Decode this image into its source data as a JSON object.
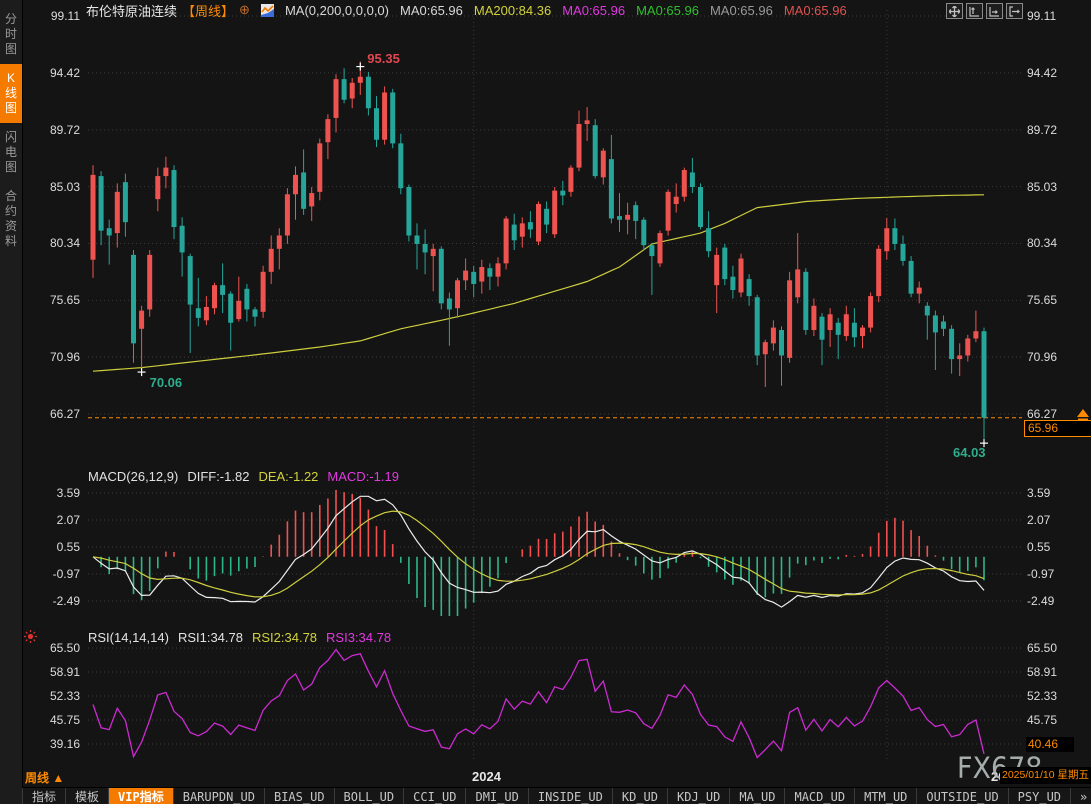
{
  "header": {
    "title": "布伦特原油连续",
    "period_tag": "【周线】",
    "plus_icon": "⊕",
    "ma_param": "MA(0,200,0,0,0,0)",
    "ma_items": [
      {
        "label": "MA0:65.96",
        "color": "#d8d8d8"
      },
      {
        "label": "MA200:84.36",
        "color": "#d2d23e"
      },
      {
        "label": "MA0:65.96",
        "color": "#e03ae0"
      },
      {
        "label": "MA0:65.96",
        "color": "#2fbf2f"
      },
      {
        "label": "MA0:65.96",
        "color": "#9a9a9a"
      },
      {
        "label": "MA0:65.96",
        "color": "#e05252"
      }
    ]
  },
  "sidebar": {
    "tabs": [
      {
        "label": "分时图",
        "active": false
      },
      {
        "label": "K线图",
        "active": true
      },
      {
        "label": "闪电图",
        "active": false
      },
      {
        "label": "合约资料",
        "active": false
      }
    ]
  },
  "macd_panel": {
    "title": "MACD(26,12,9)",
    "diff_label": "DIFF:-1.82",
    "dea_label": "DEA:-1.22",
    "macd_label": "MACD:-1.19",
    "axis_labels": [
      "3.59",
      "2.07",
      "0.55",
      "-0.97",
      "-2.49"
    ]
  },
  "rsi_panel": {
    "title": "RSI(14,14,14)",
    "rsi1_label": "RSI1:34.78",
    "rsi2_label": "RSI2:34.78",
    "rsi3_label": "RSI3:34.78",
    "axis_labels": [
      "65.50",
      "58.91",
      "52.33",
      "45.75",
      "39.16"
    ],
    "badge": "40.46"
  },
  "status_bar": {
    "period": "周线",
    "period_arrow": "▲",
    "year_left": "2024",
    "year_right": "2025",
    "date_tooltip": "2025/01/10 星期五",
    "watermark": "FX678"
  },
  "bottom_tabs": [
    {
      "label": "指标",
      "active": false
    },
    {
      "label": "模板",
      "active": false
    },
    {
      "label": "VIP指标",
      "active": true
    },
    {
      "label": "BARUPDN_UD",
      "active": false
    },
    {
      "label": "BIAS_UD",
      "active": false
    },
    {
      "label": "BOLL_UD",
      "active": false
    },
    {
      "label": "CCI_UD",
      "active": false
    },
    {
      "label": "DMI_UD",
      "active": false
    },
    {
      "label": "INSIDE_UD",
      "active": false
    },
    {
      "label": "KD_UD",
      "active": false
    },
    {
      "label": "KDJ_UD",
      "active": false
    },
    {
      "label": "MA_UD",
      "active": false
    },
    {
      "label": "MACD_UD",
      "active": false
    },
    {
      "label": "MTM_UD",
      "active": false
    },
    {
      "label": "OUTSIDE_UD",
      "active": false
    },
    {
      "label": "PSY_UD",
      "active": false
    },
    {
      "label": "»",
      "active": false
    }
  ],
  "chart_data": {
    "type": "candlestick",
    "instrument": "布伦特原油连续",
    "period": "周线",
    "price_axis_labels": [
      "99.11",
      "94.42",
      "89.72",
      "85.03",
      "80.34",
      "75.65",
      "70.96",
      "66.27"
    ],
    "price_axis_range": [
      99.11,
      66.27
    ],
    "macd_axis_range": [
      3.59,
      -2.49
    ],
    "rsi_axis_range": [
      65.5,
      39.16
    ],
    "colors": {
      "up": "#ef5350",
      "down": "#26a69a",
      "ma200": "#cdcd3e",
      "diff_line": "#ececec",
      "dea_line": "#cdcd3e",
      "rsi_line": "#cc2ad2",
      "accent": "#ff8a00",
      "grid": "#3a3a3a"
    },
    "candles": [
      [
        79.0,
        86.8,
        77.5,
        86.0
      ],
      [
        85.9,
        86.3,
        80.2,
        81.4
      ],
      [
        81.6,
        82.3,
        78.6,
        81.0
      ],
      [
        81.2,
        85.3,
        80.0,
        84.6
      ],
      [
        85.4,
        86.1,
        80.9,
        82.1
      ],
      [
        79.4,
        79.8,
        70.5,
        72.1
      ],
      [
        73.3,
        75.2,
        70.06,
        74.8
      ],
      [
        74.9,
        79.8,
        74.3,
        79.4
      ],
      [
        84.0,
        86.6,
        83.0,
        85.9
      ],
      [
        85.9,
        87.5,
        84.9,
        86.6
      ],
      [
        86.4,
        86.8,
        80.7,
        81.7
      ],
      [
        81.8,
        82.5,
        77.6,
        79.6
      ],
      [
        79.3,
        79.5,
        71.3,
        75.3
      ],
      [
        75.0,
        77.5,
        73.5,
        74.2
      ],
      [
        74.0,
        76.0,
        73.6,
        75.1
      ],
      [
        75.0,
        77.1,
        74.5,
        76.9
      ],
      [
        76.9,
        78.7,
        74.6,
        76.1
      ],
      [
        76.2,
        76.4,
        71.5,
        73.8
      ],
      [
        74.1,
        77.6,
        73.9,
        75.6
      ],
      [
        76.6,
        77.0,
        73.9,
        74.9
      ],
      [
        74.9,
        75.1,
        73.5,
        74.3
      ],
      [
        74.7,
        78.5,
        74.2,
        78.0
      ],
      [
        78.0,
        81.0,
        77.0,
        79.9
      ],
      [
        79.9,
        81.6,
        78.2,
        81.0
      ],
      [
        81.0,
        84.9,
        80.3,
        84.4
      ],
      [
        84.4,
        86.7,
        82.3,
        86.0
      ],
      [
        86.2,
        88.1,
        82.7,
        83.2
      ],
      [
        83.4,
        85.0,
        82.2,
        84.5
      ],
      [
        84.6,
        89.0,
        83.9,
        88.6
      ],
      [
        88.7,
        91.0,
        87.3,
        90.6
      ],
      [
        90.7,
        94.3,
        89.5,
        93.9
      ],
      [
        93.9,
        94.8,
        91.9,
        92.2
      ],
      [
        92.3,
        94.0,
        91.5,
        93.6
      ],
      [
        93.6,
        95.35,
        92.6,
        94.1
      ],
      [
        94.1,
        94.5,
        90.9,
        91.5
      ],
      [
        91.5,
        92.5,
        88.3,
        88.9
      ],
      [
        88.9,
        93.3,
        88.5,
        92.8
      ],
      [
        92.8,
        93.1,
        88.2,
        88.6
      ],
      [
        88.6,
        89.4,
        84.4,
        84.9
      ],
      [
        85.0,
        85.2,
        80.5,
        81.0
      ],
      [
        81.0,
        82.0,
        78.2,
        80.3
      ],
      [
        80.3,
        81.5,
        77.8,
        79.6
      ],
      [
        79.3,
        80.3,
        76.4,
        79.9
      ],
      [
        79.9,
        80.1,
        74.9,
        75.4
      ],
      [
        75.8,
        76.3,
        71.9,
        74.9
      ],
      [
        75.0,
        77.5,
        74.2,
        77.3
      ],
      [
        77.3,
        79.1,
        76.5,
        78.1
      ],
      [
        78.0,
        78.5,
        75.9,
        77.0
      ],
      [
        77.2,
        79.0,
        76.2,
        78.4
      ],
      [
        78.3,
        78.7,
        76.5,
        77.6
      ],
      [
        77.6,
        79.2,
        76.8,
        78.7
      ],
      [
        78.7,
        82.6,
        78.2,
        82.4
      ],
      [
        81.9,
        82.8,
        79.8,
        80.6
      ],
      [
        80.9,
        82.5,
        80.0,
        82.0
      ],
      [
        82.1,
        83.0,
        80.8,
        81.5
      ],
      [
        80.5,
        83.8,
        80.2,
        83.6
      ],
      [
        83.2,
        83.8,
        81.2,
        81.9
      ],
      [
        81.1,
        85.0,
        80.8,
        84.7
      ],
      [
        84.7,
        85.5,
        83.5,
        84.3
      ],
      [
        84.6,
        86.8,
        84.2,
        86.6
      ],
      [
        86.6,
        91.3,
        86.3,
        90.2
      ],
      [
        90.2,
        91.6,
        88.8,
        90.5
      ],
      [
        90.1,
        90.6,
        85.7,
        85.9
      ],
      [
        85.8,
        88.2,
        85.2,
        88.0
      ],
      [
        87.3,
        89.3,
        82.0,
        82.4
      ],
      [
        82.6,
        84.5,
        81.3,
        82.3
      ],
      [
        82.3,
        83.7,
        81.1,
        82.7
      ],
      [
        83.5,
        83.8,
        80.7,
        82.2
      ],
      [
        82.3,
        82.5,
        79.8,
        80.2
      ],
      [
        80.2,
        80.4,
        76.1,
        79.3
      ],
      [
        78.7,
        81.4,
        78.4,
        81.2
      ],
      [
        81.4,
        84.8,
        81.0,
        84.6
      ],
      [
        83.6,
        85.3,
        82.9,
        84.2
      ],
      [
        84.2,
        86.6,
        83.8,
        86.4
      ],
      [
        86.2,
        87.4,
        84.5,
        85.0
      ],
      [
        85.0,
        85.3,
        81.5,
        81.7
      ],
      [
        81.6,
        83.0,
        79.2,
        79.7
      ],
      [
        76.9,
        80.0,
        74.6,
        79.4
      ],
      [
        80.0,
        80.3,
        76.9,
        77.4
      ],
      [
        77.6,
        78.5,
        75.8,
        76.5
      ],
      [
        76.3,
        79.5,
        75.9,
        79.1
      ],
      [
        77.4,
        77.8,
        75.2,
        76.0
      ],
      [
        75.9,
        76.1,
        70.3,
        71.1
      ],
      [
        71.2,
        72.4,
        68.5,
        72.2
      ],
      [
        72.1,
        74.0,
        71.5,
        73.4
      ],
      [
        73.2,
        73.5,
        68.6,
        71.1
      ],
      [
        70.9,
        78.0,
        70.5,
        77.3
      ],
      [
        75.9,
        81.2,
        75.4,
        78.2
      ],
      [
        78.0,
        78.3,
        72.8,
        73.2
      ],
      [
        73.2,
        75.8,
        72.7,
        75.2
      ],
      [
        74.3,
        74.6,
        70.3,
        72.4
      ],
      [
        73.2,
        75.0,
        71.8,
        74.5
      ],
      [
        73.8,
        74.2,
        70.8,
        72.8
      ],
      [
        72.7,
        75.2,
        72.3,
        74.5
      ],
      [
        73.8,
        75.0,
        71.8,
        72.6
      ],
      [
        72.7,
        73.6,
        71.7,
        73.4
      ],
      [
        73.4,
        76.3,
        73.0,
        76.0
      ],
      [
        76.0,
        80.2,
        75.5,
        79.9
      ],
      [
        79.7,
        82.45,
        79.0,
        81.6
      ],
      [
        81.6,
        82.4,
        79.8,
        80.3
      ],
      [
        80.3,
        81.0,
        78.5,
        78.9
      ],
      [
        78.9,
        79.3,
        75.9,
        76.2
      ],
      [
        76.2,
        77.2,
        75.4,
        76.7
      ],
      [
        75.2,
        75.5,
        72.4,
        74.4
      ],
      [
        74.4,
        74.8,
        69.9,
        73.0
      ],
      [
        73.9,
        74.4,
        72.7,
        73.3
      ],
      [
        73.3,
        73.6,
        69.6,
        70.8
      ],
      [
        70.8,
        72.1,
        69.4,
        71.1
      ],
      [
        71.1,
        72.8,
        70.6,
        72.5
      ],
      [
        72.5,
        74.8,
        72.2,
        73.1
      ],
      [
        73.1,
        73.4,
        64.03,
        65.96
      ]
    ],
    "ma200_points": [
      [
        0,
        69.8
      ],
      [
        6,
        70.1
      ],
      [
        14,
        70.7
      ],
      [
        22,
        71.3
      ],
      [
        28,
        71.8
      ],
      [
        33,
        72.3
      ],
      [
        38,
        73.3
      ],
      [
        43,
        74.0
      ],
      [
        47,
        74.6
      ],
      [
        52,
        75.4
      ],
      [
        56,
        76.2
      ],
      [
        61,
        77.2
      ],
      [
        65,
        78.4
      ],
      [
        69,
        80.3
      ],
      [
        75,
        81.2
      ],
      [
        78,
        82.0
      ],
      [
        82,
        83.3
      ],
      [
        88,
        83.8
      ],
      [
        94,
        84.05
      ],
      [
        100,
        84.2
      ],
      [
        105,
        84.3
      ],
      [
        110,
        84.36
      ]
    ],
    "annotations": {
      "high": {
        "label": "95.35",
        "index": 33,
        "price": 95.35
      },
      "low": {
        "label": "70.06",
        "index": 6,
        "price": 70.06
      },
      "last_low": {
        "label": "64.03",
        "index": 110,
        "price": 64.03
      }
    },
    "current_price": 65.96,
    "current_price_label": "65.96",
    "year_dividers": [
      {
        "index": 47,
        "label": "2024"
      },
      {
        "index": 98,
        "label": "2025"
      }
    ]
  }
}
